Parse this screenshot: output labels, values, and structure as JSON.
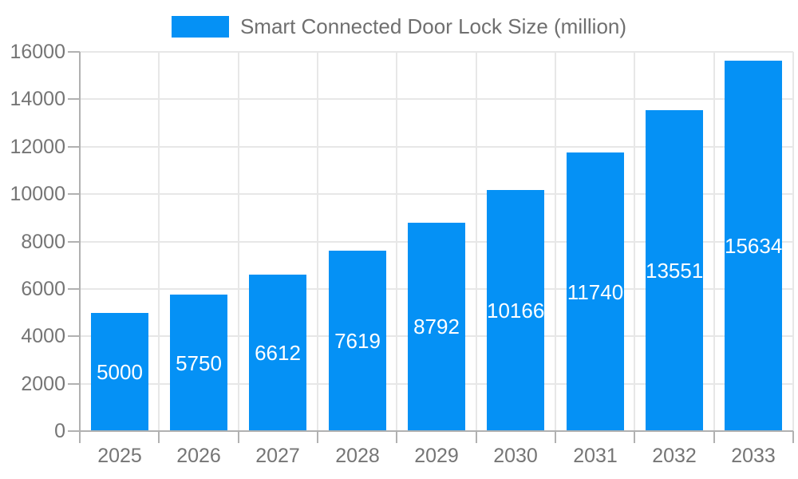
{
  "legend": {
    "label": "Smart Connected Door Lock Size (million)"
  },
  "chart_data": {
    "type": "bar",
    "title": "",
    "xlabel": "",
    "ylabel": "",
    "categories": [
      "2025",
      "2026",
      "2027",
      "2028",
      "2029",
      "2030",
      "2031",
      "2032",
      "2033"
    ],
    "series": [
      {
        "name": "Smart Connected Door Lock Size (million)",
        "values": [
          5000,
          5750,
          6612,
          7619,
          8792,
          10166,
          11740,
          13551,
          15634
        ]
      }
    ],
    "value_labels": [
      "5000",
      "5750",
      "6612",
      "7619",
      "8792",
      "10166",
      "11740",
      "13551",
      "15634"
    ],
    "yticks": [
      0,
      2000,
      4000,
      6000,
      8000,
      10000,
      12000,
      14000,
      16000
    ],
    "ytick_labels": [
      "0",
      "2000",
      "4000",
      "6000",
      "8000",
      "10000",
      "12000",
      "14000",
      "16000"
    ],
    "ylim": [
      0,
      16000
    ],
    "grid": "both",
    "legend_position": "top-center",
    "colors": {
      "bar": "#0591f5",
      "value_label": "#ffffff",
      "tick_text": "#757575",
      "legend_text": "#6f6f6f",
      "gridline": "#e7e7e7",
      "axis": "#b1b1b1"
    }
  }
}
